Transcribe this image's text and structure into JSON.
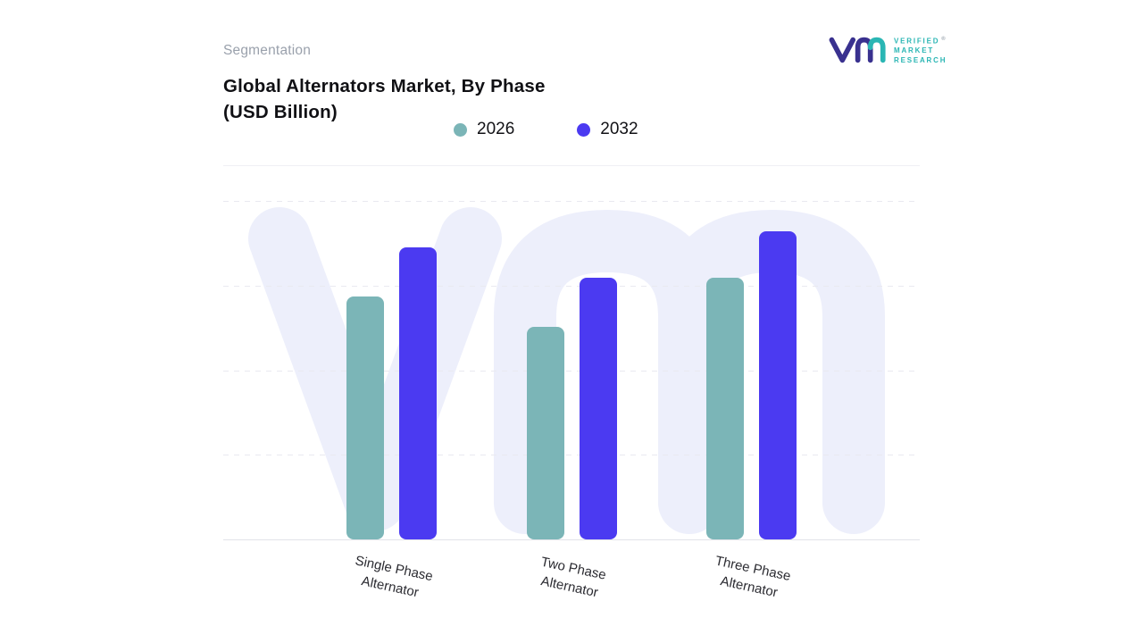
{
  "header": {
    "eyebrow": "Segmentation",
    "title_line1": "Global Alternators Market, By Phase",
    "title_line2": "(USD Billion)"
  },
  "logo": {
    "brand_lines": [
      "VERIFIED",
      "MARKET",
      "RESEARCH"
    ],
    "registered_mark": "®",
    "glyph_primary_color": "#39318f",
    "glyph_accent_color": "#2ab6b4",
    "text_color": "#2ab6b4"
  },
  "legend": [
    {
      "label": "2026",
      "color": "#7bb5b7"
    },
    {
      "label": "2032",
      "color": "#4b3af1"
    }
  ],
  "chart_data": {
    "type": "bar",
    "title": "Global Alternators Market, By Phase (USD Billion)",
    "units": "USD Billion",
    "categories": [
      "Single Phase Alternator",
      "Two Phase Alternator",
      "Three Phase Alternator"
    ],
    "series": [
      {
        "name": "2026",
        "color": "#7bb5b7",
        "values": [
          7.9,
          6.9,
          8.5
        ]
      },
      {
        "name": "2032",
        "color": "#4b3af1",
        "values": [
          9.5,
          8.5,
          10.0
        ]
      }
    ],
    "xlabel": "",
    "ylabel": "",
    "ylim": [
      0,
      11
    ],
    "y_axis_labels_visible": false,
    "gridlines": "dashed-horizontal",
    "legend_position": "top"
  }
}
